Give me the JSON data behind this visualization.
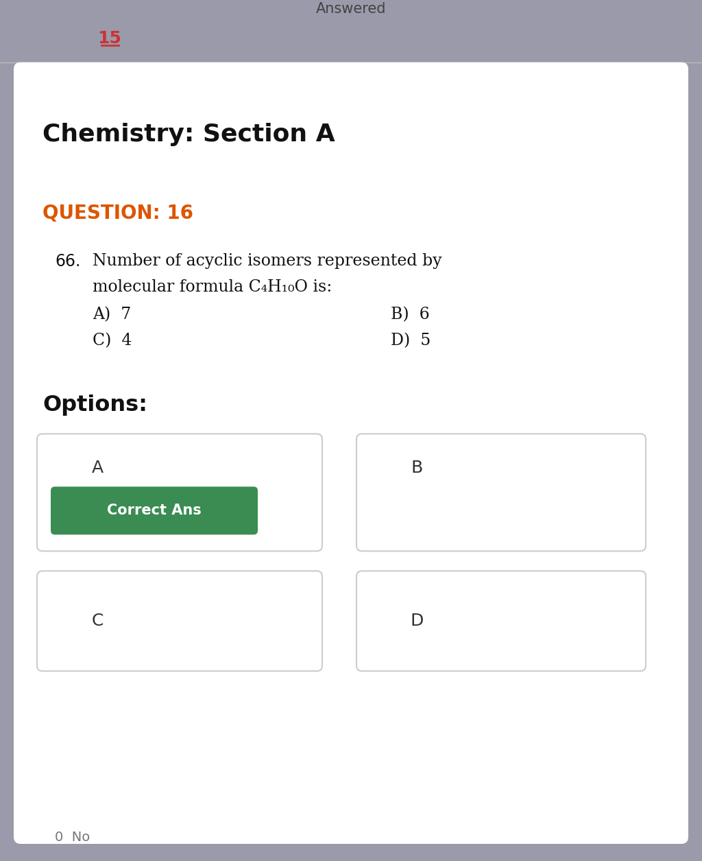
{
  "bg_outer": "#9a9aaa",
  "bg_card": "#ffffff",
  "top_bar_bg": "#9a9aaa",
  "top_number": "15",
  "top_number_color": "#cc3333",
  "top_answered": "Answered",
  "top_answered_color": "#444444",
  "section_title": "Chemistry: Section A",
  "section_title_color": "#111111",
  "section_title_size": 26,
  "question_label": "QUESTION: 16",
  "question_label_color": "#dd5500",
  "question_label_size": 20,
  "question_number": "66.",
  "question_text_line1": "Number of acyclic isomers represented by",
  "question_text_line2": "molecular formula C₄H₁₀O is:",
  "question_text_color": "#111111",
  "question_text_size": 17,
  "options_A": "A)  7",
  "options_B": "B)  6",
  "options_C": "C)  4",
  "options_D": "D)  5",
  "options_label": "Options:",
  "options_label_color": "#111111",
  "options_label_size": 23,
  "btn_A_label": "A",
  "btn_B_label": "B",
  "btn_C_label": "C",
  "btn_D_label": "D",
  "correct_ans_text": "Correct Ans",
  "correct_ans_bg": "#3a8c52",
  "correct_ans_text_color": "#ffffff",
  "btn_border_color": "#cccccc",
  "btn_bg": "#ffffff",
  "btn_text_color": "#333333",
  "bottom_text": "0  No",
  "bottom_text_color": "#777777"
}
